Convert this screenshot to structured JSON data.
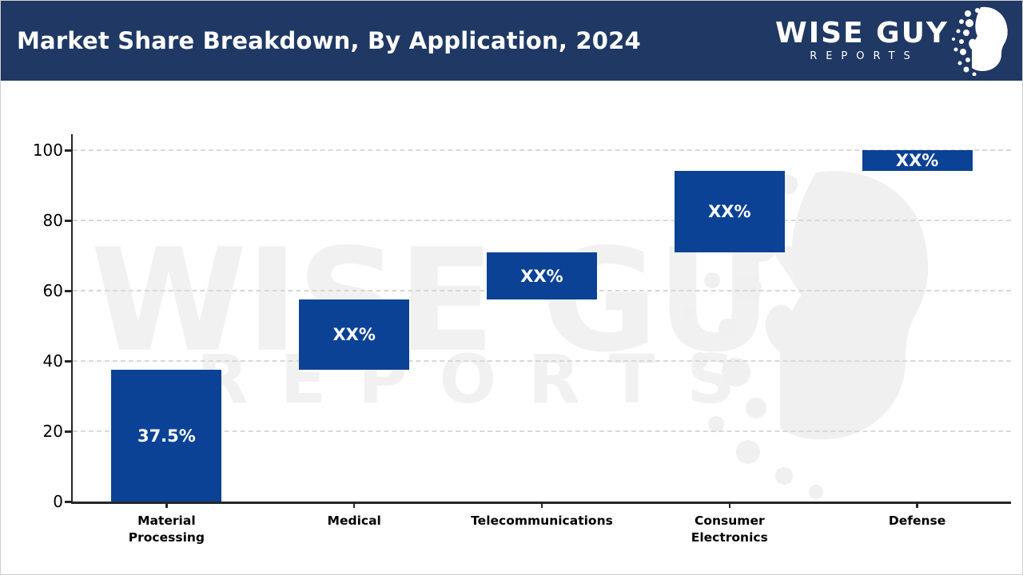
{
  "colors": {
    "header_bg": "#1f3864",
    "bar": "#0b4295",
    "axis": "#262626",
    "grid": "#d9d9d9",
    "bar_label": "#ffffff",
    "watermark": "#f1f1f1"
  },
  "header": {
    "title": "Market Share Breakdown, By Application, 2024",
    "logo": {
      "wordmark": "WISE GUY",
      "subtitle": "REPORTS"
    }
  },
  "watermark": {
    "wordmark": "WISE GUY",
    "subtitle": "REPORTS"
  },
  "chart_data": {
    "type": "bar",
    "subtype": "waterfall",
    "title": "Market Share Breakdown, By Application, 2024",
    "categories": [
      "Material Processing",
      "Medical",
      "Telecommunications",
      "Consumer Electronics",
      "Defense"
    ],
    "segments": [
      {
        "category": "Material Processing",
        "start": 0,
        "end": 37.5,
        "label": "37.5%"
      },
      {
        "category": "Medical",
        "start": 37.5,
        "end": 57.5,
        "label": "XX%"
      },
      {
        "category": "Telecommunications",
        "start": 57.5,
        "end": 70.8,
        "label": "XX%"
      },
      {
        "category": "Consumer Electronics",
        "start": 70.8,
        "end": 94,
        "label": "XX%"
      },
      {
        "category": "Defense",
        "start": 94,
        "end": 100,
        "label": "XX%"
      }
    ],
    "xlabel": "",
    "ylabel": "",
    "yticks": [
      0,
      20,
      40,
      60,
      80,
      100
    ],
    "ylim": [
      0,
      104.5
    ],
    "grid": "horizontal-dashed",
    "legend": "none",
    "bar_color": "#0b4295",
    "value_label_color": "#ffffff"
  }
}
